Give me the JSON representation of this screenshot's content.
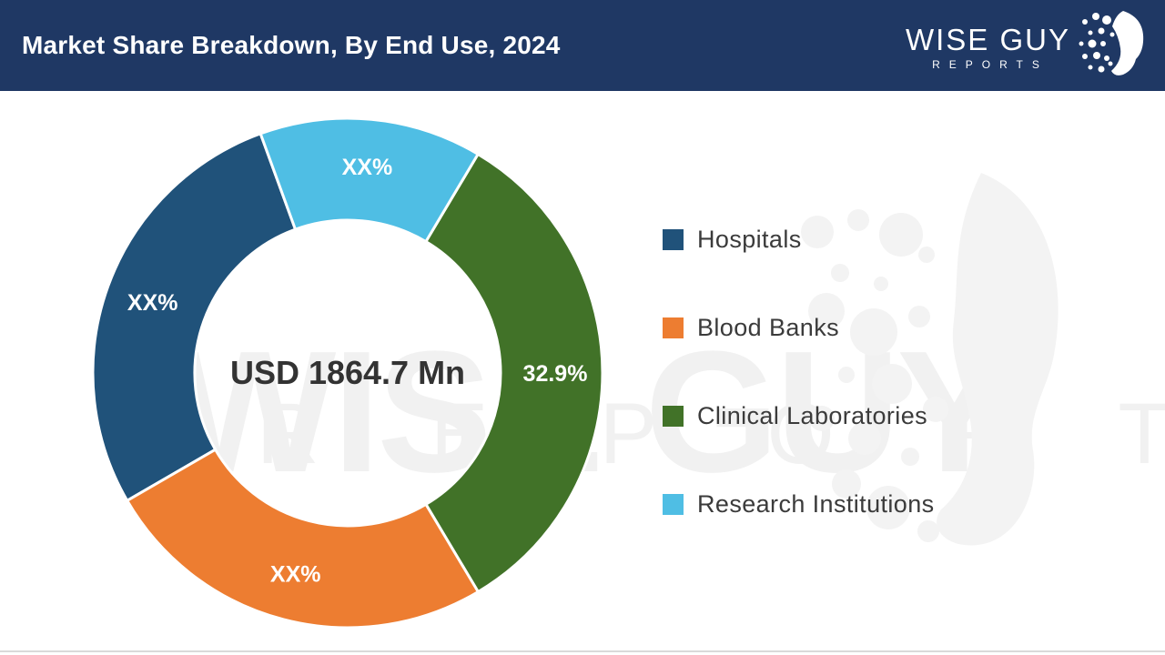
{
  "header": {
    "title": "Market Share Breakdown, By End Use, 2024",
    "bg_color": "#1F3864",
    "logo": {
      "line1": "WISE GUY",
      "line2": "REPORTS"
    }
  },
  "chart_data": {
    "type": "pie",
    "donut": true,
    "title": "Market Share Breakdown, By End Use, 2024",
    "center_label": "USD 1864.7 Mn",
    "legend_position": "right",
    "start_angle_deg": 110,
    "direction": "counterclockwise",
    "segments": [
      {
        "name": "Hospitals",
        "display_label": "XX%",
        "value_pct": 27.8,
        "color": "#20527A"
      },
      {
        "name": "Blood Banks",
        "display_label": "XX%",
        "value_pct": 25.2,
        "color": "#ED7D31"
      },
      {
        "name": "Clinical Laboratories",
        "display_label": "32.9%",
        "value_pct": 32.9,
        "color": "#417228"
      },
      {
        "name": "Research Institutions",
        "display_label": "XX%",
        "value_pct": 14.1,
        "color": "#4FBEE4"
      }
    ]
  },
  "watermark": {
    "line1": "WISE GUY",
    "line2": "REPORTS"
  },
  "colors": {
    "label_text": "#ffffff",
    "center_text": "#333333",
    "legend_text": "#3b3b3b",
    "watermark": "#f1f1f1",
    "separator": "#ffffff"
  }
}
